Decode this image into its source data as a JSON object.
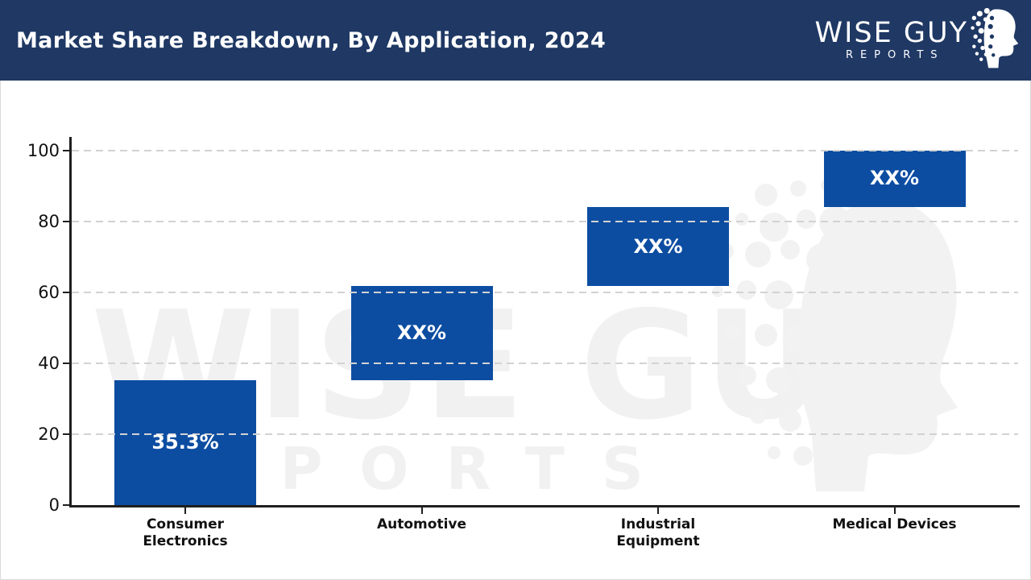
{
  "header": {
    "title": "Market Share Breakdown, By Application, 2024",
    "bg_color": "#1F3864",
    "logo": {
      "line1": "WISE GUY",
      "line2": "REPORTS"
    }
  },
  "watermark": {
    "line1": "WISE GUY",
    "line2": "REPORTS"
  },
  "chart_data": {
    "type": "bar",
    "subtype": "waterfall-floating-segments",
    "title": "Market Share Breakdown, By Application, 2024",
    "categories": [
      "Consumer\nElectronics",
      "Automotive",
      "Industrial\nEquipment",
      "Medical Devices"
    ],
    "bars": [
      {
        "category": "Consumer Electronics",
        "label": "35.3%",
        "start": 0,
        "end": 35.3
      },
      {
        "category": "Automotive",
        "label": "XX%",
        "start": 35.3,
        "end": 61.8
      },
      {
        "category": "Industrial Equipment",
        "label": "XX%",
        "start": 61.8,
        "end": 84.1
      },
      {
        "category": "Medical Devices",
        "label": "XX%",
        "start": 84.1,
        "end": 100
      }
    ],
    "yticks": [
      0,
      20,
      40,
      60,
      80,
      100
    ],
    "ylim": [
      0,
      104
    ],
    "xlabel": "",
    "ylabel": "",
    "legend": "none",
    "grid": "horizontal-dashed-above-bars",
    "bar_color": "#0C4DA2",
    "grid_color": "#d2d2d2",
    "axis_color": "#1f1f1f",
    "value_label_color": "#ffffff"
  }
}
